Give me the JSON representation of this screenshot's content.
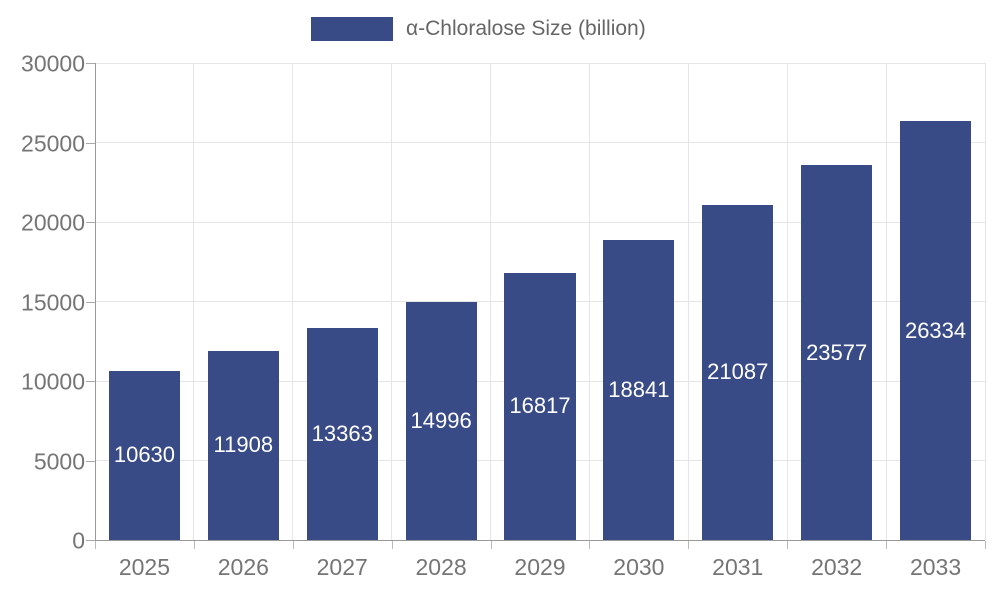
{
  "legend": {
    "label": "α-Chloralose Size (billion)"
  },
  "chart_data": {
    "type": "bar",
    "title": "α-Chloralose Size (billion)",
    "categories": [
      "2025",
      "2026",
      "2027",
      "2028",
      "2029",
      "2030",
      "2031",
      "2032",
      "2033"
    ],
    "series": [
      {
        "name": "α-Chloralose Size (billion)",
        "values": [
          10630,
          11908,
          13363,
          14996,
          16817,
          18841,
          21087,
          23577,
          26334
        ]
      }
    ],
    "values": [
      10630,
      11908,
      13363,
      14996,
      16817,
      18841,
      21087,
      23577,
      26334
    ],
    "data_labels_visible": true,
    "xlabel": "",
    "ylabel": "",
    "ylim": [
      0,
      30000
    ],
    "yticks": [
      0,
      5000,
      10000,
      15000,
      20000,
      25000,
      30000
    ],
    "grid": true,
    "legend_position": "top",
    "colors": {
      "bar": "#394B87",
      "bar_label": "#FFFFFF",
      "axis": "#999999",
      "grid": "#E5E5E5",
      "tick_text": "#757575",
      "legend_text": "#666666"
    }
  }
}
